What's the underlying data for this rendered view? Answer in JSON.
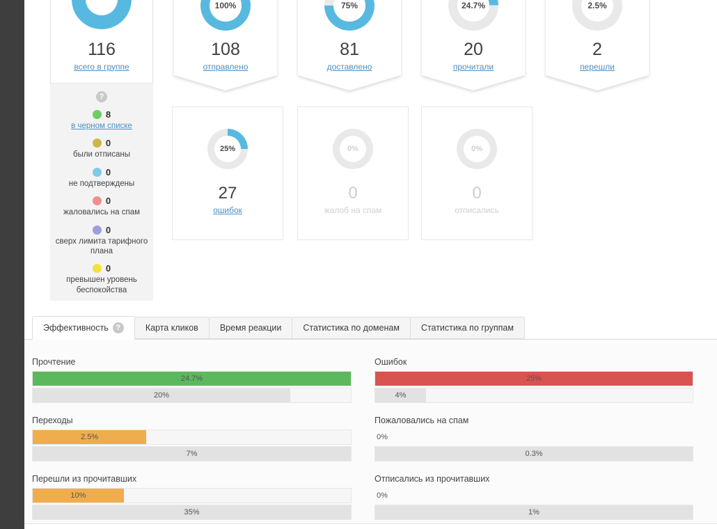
{
  "colors": {
    "accent_blue": "#58b9e0",
    "donut_track": "#e9e9e9",
    "disabled_track": "#ececec",
    "green": "#5cb85c",
    "red": "#d9534f",
    "orange": "#f0ad4e",
    "link": "#4a90c2"
  },
  "icons": {
    "help_glyph": "?"
  },
  "summary_cards": [
    {
      "value": "116",
      "label": "всего в группе",
      "progress": 100
    },
    {
      "percent": "100%",
      "value": "108",
      "label": "отправлено",
      "progress": 100
    },
    {
      "percent": "75%",
      "value": "81",
      "label": "доставлено",
      "progress": 75
    },
    {
      "percent": "24.7%",
      "value": "20",
      "label": "прочитали",
      "progress": 24.7
    },
    {
      "percent": "2.5%",
      "value": "2",
      "label": "перешли",
      "progress": 2.5
    }
  ],
  "legend": {
    "items": [
      {
        "color": "#6fce63",
        "value": "8",
        "label": "в черном списке",
        "link": true
      },
      {
        "color": "#cdb64e",
        "value": "0",
        "label": "были отписаны"
      },
      {
        "color": "#7ec9e8",
        "value": "0",
        "label": "не подтверждены"
      },
      {
        "color": "#f0908d",
        "value": "0",
        "label": "жаловались на спам"
      },
      {
        "color": "#9a9fe0",
        "value": "0",
        "label": "сверх лимита тарифного плана"
      },
      {
        "color": "#f3e13c",
        "value": "0",
        "label": "превышен уровень беспокойства"
      }
    ]
  },
  "secondary_cards": [
    {
      "percent": "25%",
      "value": "27",
      "label": "ошибок",
      "progress": 25,
      "disabled": false
    },
    {
      "percent": "0%",
      "value": "0",
      "label": "жалоб на спам",
      "progress": 0,
      "disabled": true
    },
    {
      "percent": "0%",
      "value": "0",
      "label": "отписались",
      "progress": 0,
      "disabled": true
    }
  ],
  "tabs": [
    {
      "label": "Эффективность",
      "active": true,
      "help": true
    },
    {
      "label": "Карта кликов"
    },
    {
      "label": "Время реакции"
    },
    {
      "label": "Статистика по доменам"
    },
    {
      "label": "Статистика по группам"
    }
  ],
  "effectiveness": {
    "left": [
      {
        "title": "Прочтение",
        "value": 24.7,
        "value_label": "24.7%",
        "color": "#5cb85c",
        "avg": 20,
        "avg_label": "20%"
      },
      {
        "title": "Переходы",
        "value": 2.5,
        "value_label": "2.5%",
        "color": "#f0ad4e",
        "avg": 7,
        "avg_label": "7%"
      },
      {
        "title": "Перешли из прочитавших",
        "value": 10,
        "value_label": "10%",
        "color": "#f0ad4e",
        "avg": 35,
        "avg_label": "35%"
      }
    ],
    "right": [
      {
        "title": "Ошибок",
        "value": 25,
        "value_label": "25%",
        "color": "#d9534f",
        "avg": 4,
        "avg_label": "4%"
      },
      {
        "title": "Пожаловались на спам",
        "value": 0,
        "value_label": "0%",
        "color": "#f0ad4e",
        "avg": 0.3,
        "avg_label": "0.3%"
      },
      {
        "title": "Отписались из прочитавших",
        "value": 0,
        "value_label": "0%",
        "color": "#f0ad4e",
        "avg": 1,
        "avg_label": "1%"
      }
    ]
  }
}
